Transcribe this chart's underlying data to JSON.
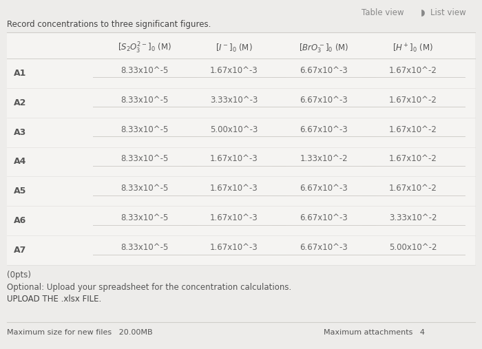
{
  "instruction": "Record concentrations to three significant figures.",
  "col_headers_math": [
    "$[S_2O_3^{2-}]_0$ (M)",
    "$[I^-]_0$ (M)",
    "$[BrO_3^-]_0$ (M)",
    "$[H^+]_0$ (M)"
  ],
  "row_labels": [
    "A1",
    "A2",
    "A3",
    "A4",
    "A5",
    "A6",
    "A7"
  ],
  "table_data": [
    [
      "8.33x10^-5",
      "1.67x10^-3",
      "6.67x10^-3",
      "1.67x10^-2"
    ],
    [
      "8.33x10^-5",
      "3.33x10^-3",
      "6.67x10^-3",
      "1.67x10^-2"
    ],
    [
      "8.33x10^-5",
      "5.00x10^-3",
      "6.67x10^-3",
      "1.67x10^-2"
    ],
    [
      "8.33x10^-5",
      "1.67x10^-3",
      "1.33x10^-2",
      "1.67x10^-2"
    ],
    [
      "8.33x10^-5",
      "1.67x10^-3",
      "6.67x10^-3",
      "1.67x10^-2"
    ],
    [
      "8.33x10^-5",
      "1.67x10^-3",
      "6.67x10^-3",
      "3.33x10^-2"
    ],
    [
      "8.33x10^-5",
      "1.67x10^-3",
      "6.67x10^-3",
      "5.00x10^-2"
    ]
  ],
  "footer_pts": "(0pts)",
  "footer_optional": "Optional: Upload your spreadsheet for the concentration calculations.",
  "footer_upload": "UPLOAD THE .xlsx FILE.",
  "footer_max_size": "Maximum size for new files   20.00MB",
  "footer_max_attach": "Maximum attachments   4",
  "bg_color": "#edecea",
  "table_bg": "#f7f6f5",
  "header_text_color": "#555555",
  "cell_text_color": "#666666",
  "row_label_color": "#555555",
  "line_color": "#d0ceca",
  "toggle_color": "#888888",
  "table_view_text": "Table view",
  "list_view_text": "List view"
}
